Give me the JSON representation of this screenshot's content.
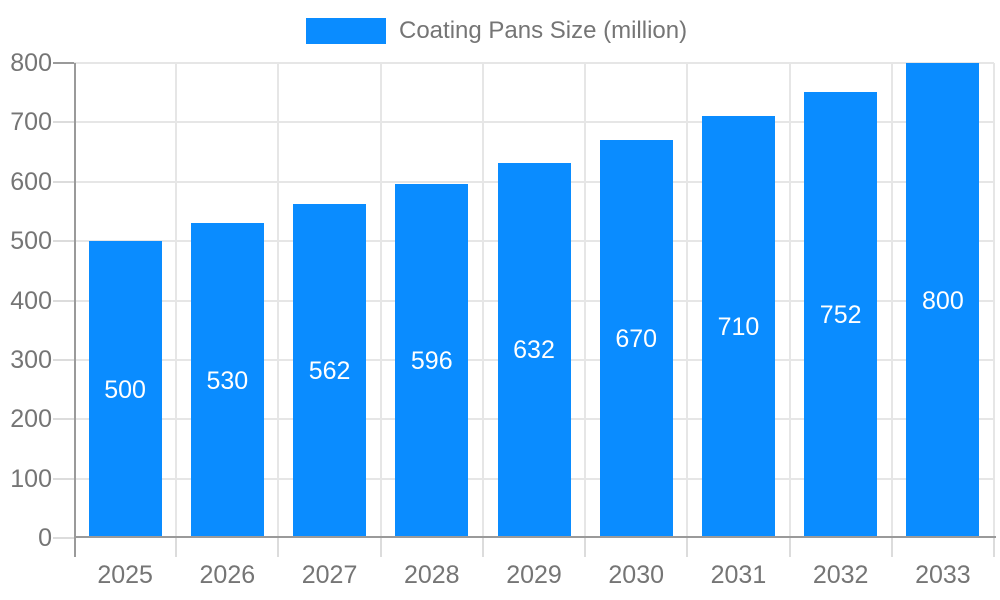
{
  "chart_data": {
    "type": "bar",
    "title": "Coating Pans Size (million)",
    "categories": [
      "2025",
      "2026",
      "2027",
      "2028",
      "2029",
      "2030",
      "2031",
      "2032",
      "2033"
    ],
    "values": [
      500,
      530,
      562,
      596,
      632,
      670,
      710,
      752,
      800
    ],
    "xlabel": "",
    "ylabel": "",
    "ylim": [
      0,
      800
    ],
    "ytick_step": 100,
    "grid": "on",
    "legend_position": "top-center",
    "value_labels": "inside-bar-center",
    "bar_color": "#0a8cff",
    "axis_text_color": "#757575",
    "value_label_color": "#ffffff"
  },
  "legend": {
    "label": "Coating Pans Size (million)"
  }
}
